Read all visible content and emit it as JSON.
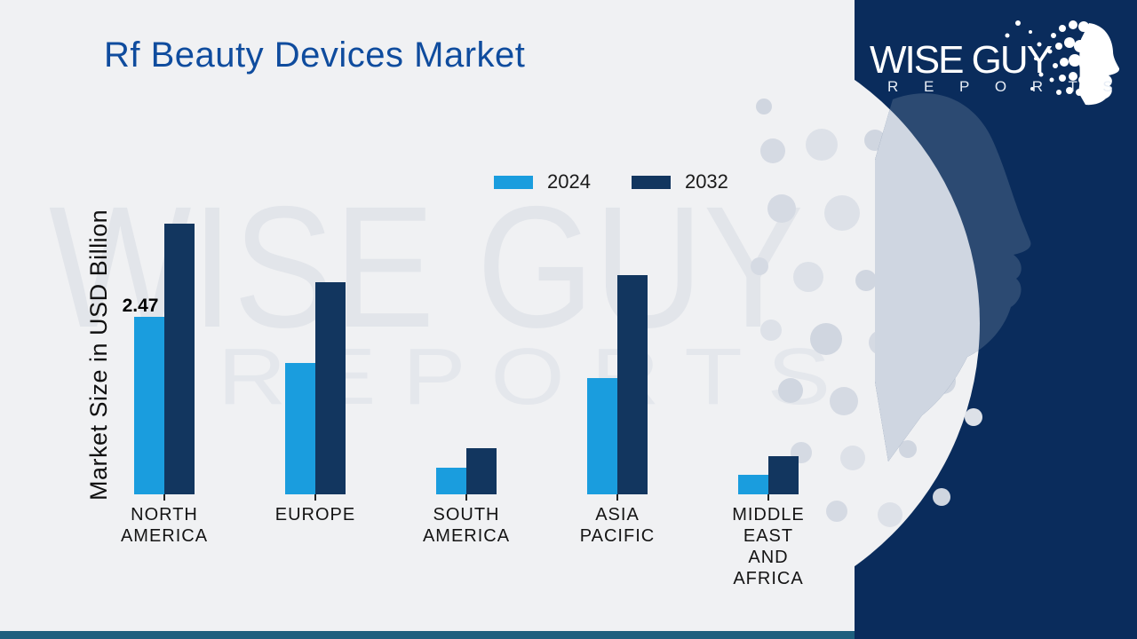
{
  "header": {
    "title": "Rf Beauty Devices Market"
  },
  "branding": {
    "logo_line1": "WISE GUY",
    "logo_line2": "R E P O R T S",
    "watermark_line1": "WISE GUY",
    "watermark_line2": "R E P O R T S"
  },
  "colors": {
    "background": "#f0f1f3",
    "panel_navy": "#0a2c5c",
    "silhouette_on_navy": "#2c4a72",
    "silhouette_on_gray": "#cfd6e1",
    "watermark_gray": "#e2e5ea",
    "dot_gray_blue": "#d5dae3",
    "teal_bar": "#1d5f7e",
    "title_blue": "#0f4c9e",
    "series_2024": "#1a9dde",
    "series_2032": "#12365f"
  },
  "chart_data": {
    "type": "bar",
    "title": "Rf Beauty Devices Market",
    "xlabel": "",
    "ylabel": "Market Size in USD Billion",
    "categories": [
      "NORTH AMERICA",
      "EUROPE",
      "SOUTH AMERICA",
      "ASIA PACIFIC",
      "MIDDLE EAST AND AFRICA"
    ],
    "category_lines": [
      [
        "NORTH",
        "AMERICA"
      ],
      [
        "EUROPE"
      ],
      [
        "SOUTH",
        "AMERICA"
      ],
      [
        "ASIA",
        "PACIFIC"
      ],
      [
        "MIDDLE",
        "EAST",
        "AND",
        "AFRICA"
      ]
    ],
    "series": [
      {
        "name": "2024",
        "color": "#1a9dde",
        "values": [
          2.47,
          1.83,
          0.37,
          1.62,
          0.27
        ]
      },
      {
        "name": "2032",
        "color": "#12365f",
        "values": [
          3.77,
          2.95,
          0.64,
          3.05,
          0.53
        ]
      }
    ],
    "point_labels": [
      {
        "category_index": 0,
        "series_index": 0,
        "text": "2.47"
      }
    ],
    "unit": "USD Billion",
    "ylim": [
      0,
      4.2
    ],
    "grid": false,
    "axis_lines": false,
    "legend_position": "top-center"
  }
}
